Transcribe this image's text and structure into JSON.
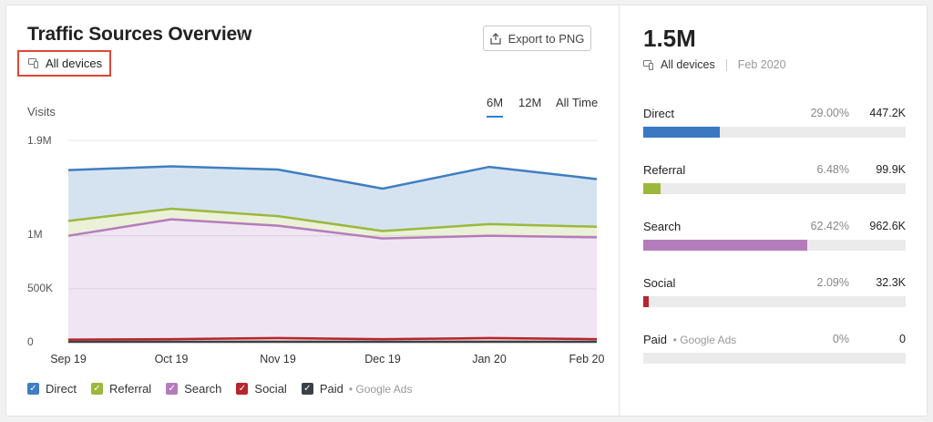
{
  "header": {
    "title": "Traffic Sources Overview",
    "info_icon": "info-icon",
    "devices_label": "All devices",
    "export_label": "Export to PNG"
  },
  "ranges": [
    {
      "label": "6M",
      "active": true
    },
    {
      "label": "12M",
      "active": false
    },
    {
      "label": "All Time",
      "active": false
    }
  ],
  "chart_data": {
    "type": "area",
    "ylabel": "Visits",
    "x": [
      "Sep 19",
      "Oct 19",
      "Nov 19",
      "Dec 19",
      "Jan 20",
      "Feb 20"
    ],
    "ytick_labels": [
      "1.9M",
      "1M",
      "500K",
      "0"
    ],
    "ytick_values": [
      1900000,
      1000000,
      500000,
      0
    ],
    "ylim": [
      0,
      1900000
    ],
    "stacked": true,
    "grid": true,
    "series": [
      {
        "name": "Paid",
        "color": "#3a4147",
        "values": [
          0,
          0,
          0,
          0,
          0,
          0
        ]
      },
      {
        "name": "Social",
        "color": "#b5272d",
        "values": [
          20000,
          25000,
          35000,
          25000,
          35000,
          25000
        ]
      },
      {
        "name": "Search",
        "color": "#b57cbc",
        "values": [
          980000,
          1130000,
          1060000,
          950000,
          965000,
          960000
        ]
      },
      {
        "name": "Referral",
        "color": "#9cb83c",
        "values": [
          140000,
          100000,
          90000,
          70000,
          110000,
          100000
        ]
      },
      {
        "name": "Direct",
        "color": "#3f7ec1",
        "values": [
          480000,
          400000,
          440000,
          400000,
          540000,
          450000
        ]
      }
    ],
    "legend_position": "bottom-left"
  },
  "legend": [
    {
      "label": "Direct",
      "color": "#3f7ec1",
      "note": ""
    },
    {
      "label": "Referral",
      "color": "#9cb83c",
      "note": ""
    },
    {
      "label": "Search",
      "color": "#b57cbc",
      "note": ""
    },
    {
      "label": "Social",
      "color": "#b5272d",
      "note": ""
    },
    {
      "label": "Paid",
      "color": "#3a4147",
      "note": "• Google Ads"
    }
  ],
  "summary": {
    "total": "1.5M",
    "devices_label": "All devices",
    "period": "Feb 2020"
  },
  "sources": [
    {
      "name": "Direct",
      "note": "",
      "pct": "29.00%",
      "value": "447.2K",
      "share": 0.29,
      "color": "#3a78c2"
    },
    {
      "name": "Referral",
      "note": "",
      "pct": "6.48%",
      "value": "99.9K",
      "share": 0.0648,
      "color": "#9cb83c"
    },
    {
      "name": "Search",
      "note": "",
      "pct": "62.42%",
      "value": "962.6K",
      "share": 0.6242,
      "color": "#b57cbc"
    },
    {
      "name": "Social",
      "note": "",
      "pct": "2.09%",
      "value": "32.3K",
      "share": 0.0209,
      "color": "#b5272d"
    },
    {
      "name": "Paid",
      "note": "• Google Ads",
      "pct": "0%",
      "value": "0",
      "share": 0,
      "color": "#3a4147"
    }
  ]
}
